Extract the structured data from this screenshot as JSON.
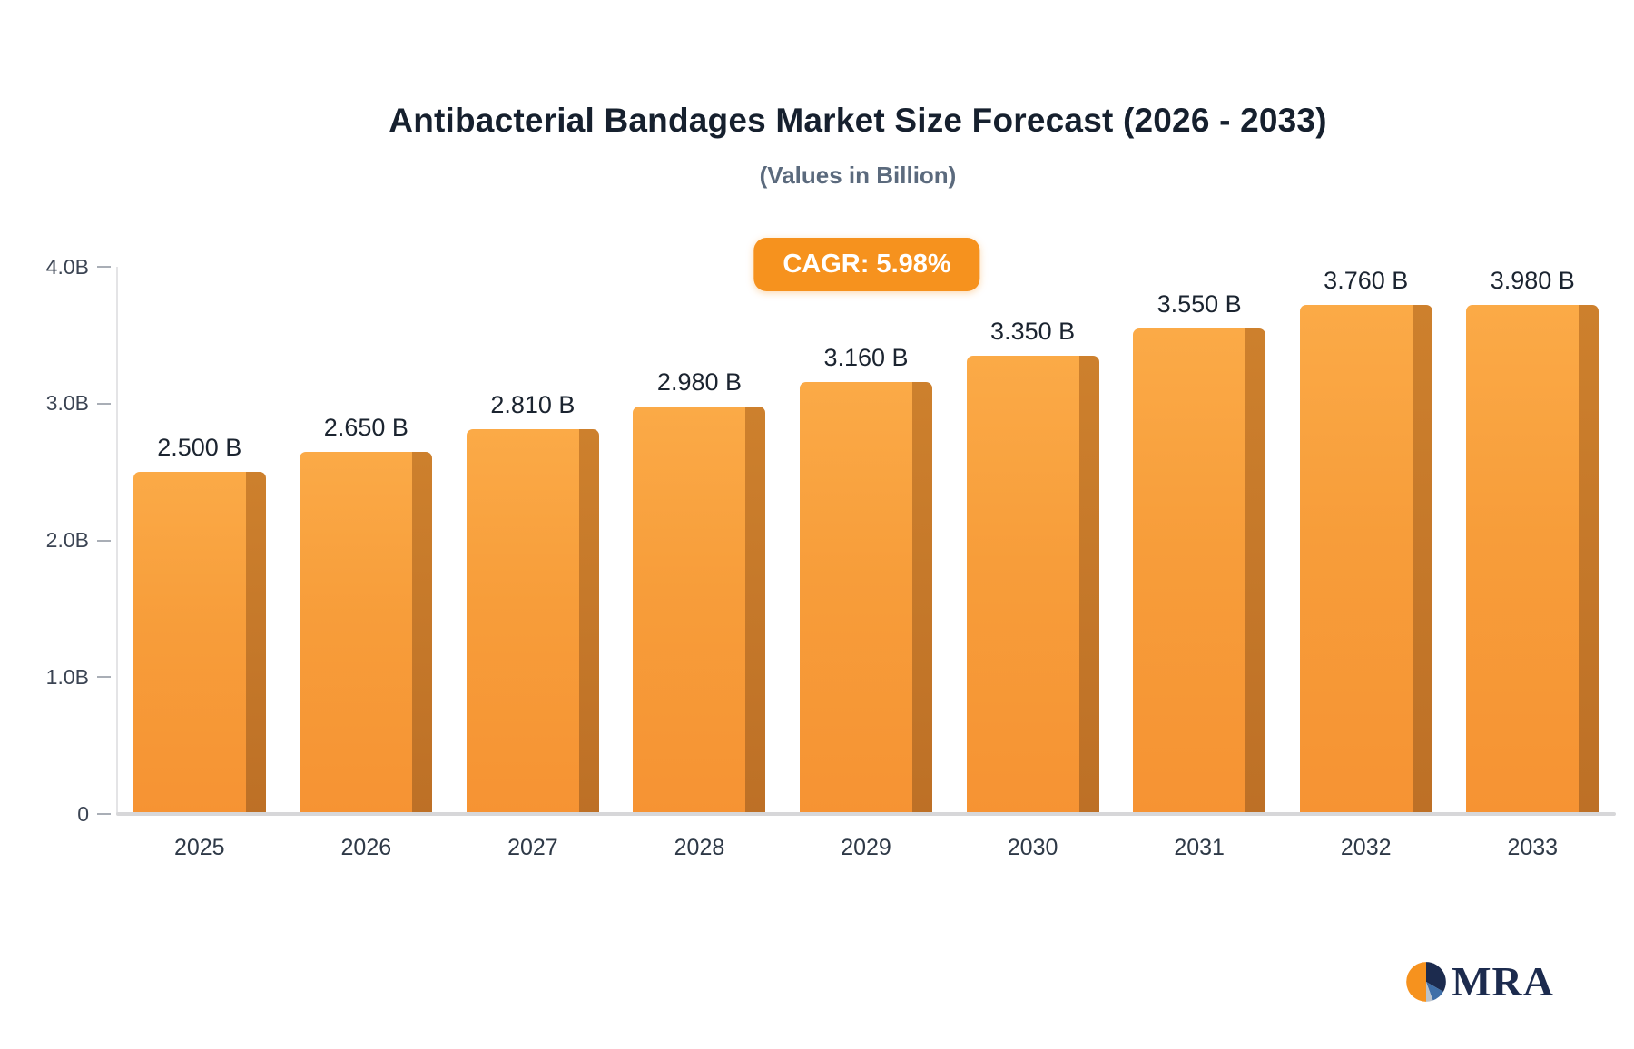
{
  "title": "Antibacterial Bandages Market Size Forecast (2026 - 2033)",
  "subtitle": "(Values in Billion)",
  "badge": {
    "label": "CAGR: 5.98%"
  },
  "logo": {
    "text": "MRA"
  },
  "chart_data": {
    "type": "bar",
    "title": "Antibacterial Bandages Market Size Forecast (2026 - 2033)",
    "subtitle": "(Values in Billion)",
    "cagr": "5.98%",
    "categories": [
      "2025",
      "2026",
      "2027",
      "2028",
      "2029",
      "2030",
      "2031",
      "2032",
      "2033"
    ],
    "values": [
      2.5,
      2.65,
      2.81,
      2.98,
      3.16,
      3.35,
      3.55,
      3.76,
      3.98
    ],
    "value_labels": [
      "2.500 B",
      "2.650 B",
      "2.810 B",
      "2.980 B",
      "3.160 B",
      "3.350 B",
      "3.550 B",
      "3.760 B",
      "3.980 B"
    ],
    "xlabel": "",
    "ylabel": "",
    "ylim": [
      0,
      4
    ],
    "yticks": [
      {
        "value": 0,
        "label": "0"
      },
      {
        "value": 1.0,
        "label": "1.0B"
      },
      {
        "value": 2.0,
        "label": "2.0B"
      },
      {
        "value": 3.0,
        "label": "3.0B"
      },
      {
        "value": 4.0,
        "label": "4.0B"
      }
    ],
    "grid": false,
    "legend": "none",
    "colors": {
      "bar_top": "#fbaa47",
      "bar_bottom": "#f69333",
      "bar_side": "#bd7026",
      "badge_bg": "#f6921e",
      "badge_text": "#ffffff",
      "title_text": "#16202e",
      "subtitle_text": "#5b6a7d",
      "axis_text": "#3b4453",
      "baseline": "#d7d7d9",
      "logo_navy": "#1c2b4e",
      "logo_orange": "#f6921e"
    }
  }
}
